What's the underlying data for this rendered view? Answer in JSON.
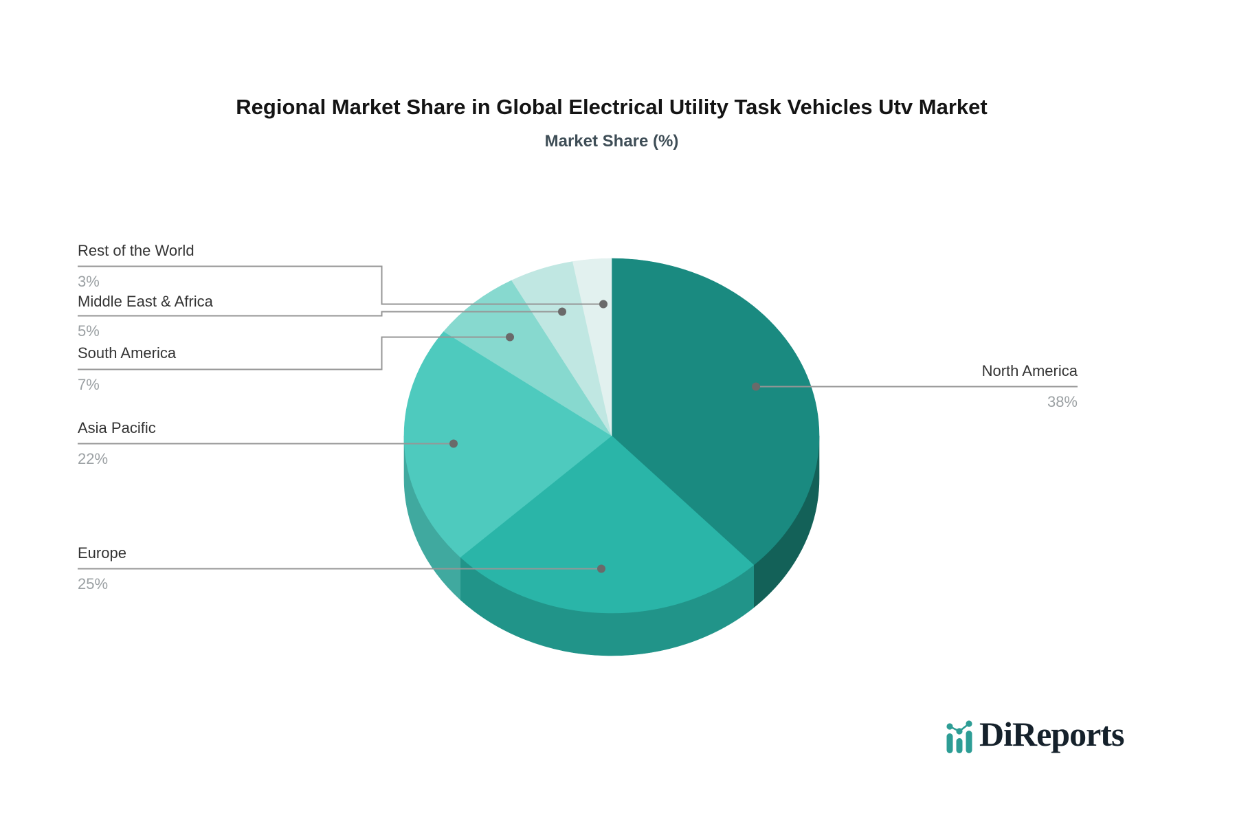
{
  "header": {
    "title": "Regional Market Share in Global Electrical Utility Task Vehicles Utv Market",
    "subtitle": "Market Share (%)"
  },
  "chart_data": {
    "type": "pie",
    "title": "Regional Market Share in Global Electrical Utility Task Vehicles Utv Market",
    "subtitle": "Market Share (%)",
    "unit": "%",
    "effect": "3d-pie",
    "direction": "clockwise",
    "start_angle_deg": 0,
    "legend_position": "callout-labels",
    "slices": [
      {
        "label": "North America",
        "value": 38,
        "display": "38%",
        "color": "#1a8a80",
        "rim_color": "#136158"
      },
      {
        "label": "Europe",
        "value": 25,
        "display": "25%",
        "color": "#2ab5a8",
        "rim_color": "#219489"
      },
      {
        "label": "Asia Pacific",
        "value": 22,
        "display": "22%",
        "color": "#4ecabe",
        "rim_color": "#40a99f"
      },
      {
        "label": "South America",
        "value": 7,
        "display": "7%",
        "color": "#87d9cf",
        "rim_color": "#6db9b0"
      },
      {
        "label": "Middle East & Africa",
        "value": 5,
        "display": "5%",
        "color": "#c0e7e2",
        "rim_color": "#a2c9c4"
      },
      {
        "label": "Rest of the World",
        "value": 3,
        "display": "3%",
        "color": "#e2f1ef",
        "rim_color": "#c2d4d1"
      }
    ]
  },
  "branding": {
    "logo_text": "DiReports",
    "logo_icon": "bar-line-chart-icon",
    "logo_icon_color": "#2d9d95",
    "logo_text_color": "#15212b"
  },
  "colors": {
    "background": "#ffffff",
    "title_text": "#141414",
    "subtitle_text": "#3e4d56",
    "label_text": "#333333",
    "value_text": "#9ba0a3",
    "callout_line": "#969696",
    "callout_dot": "#6a6a6a"
  }
}
